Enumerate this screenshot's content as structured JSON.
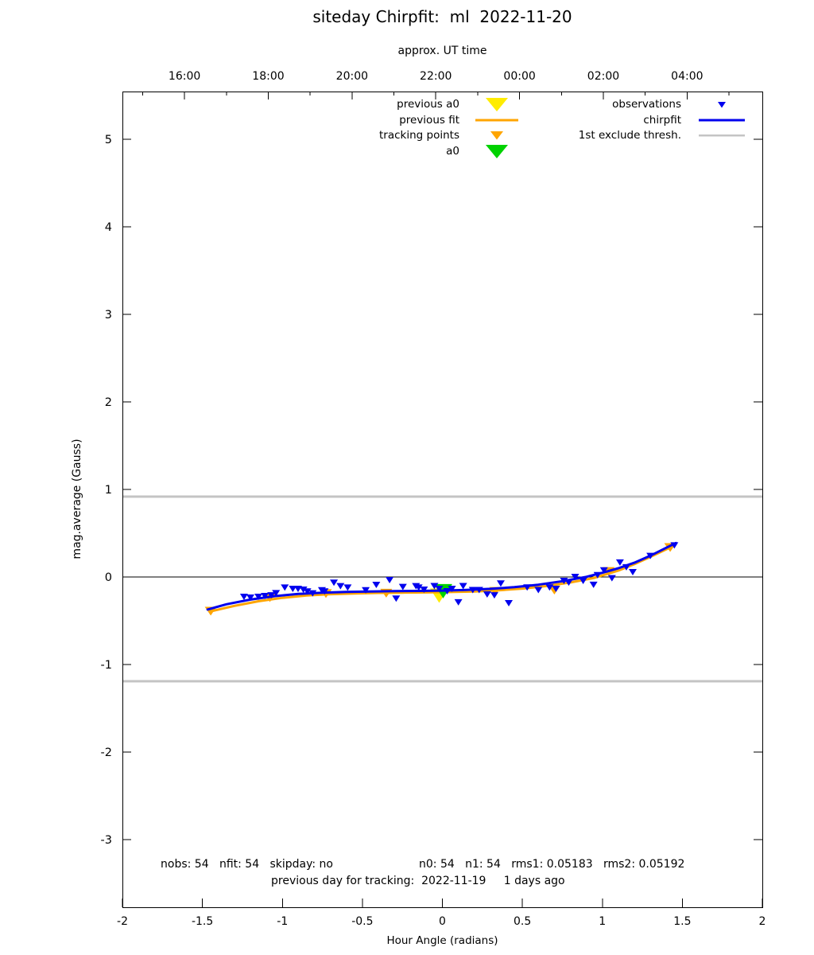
{
  "title": "siteday Chirpfit:  ml  2022-11-20",
  "stats": {
    "line1_left": "nobs: 54   nfit: 54   skipday: no",
    "line1_right": "n0: 54   n1: 54   rms1: 0.05183   rms2: 0.05192",
    "line2": "previous day for tracking:  2022-11-19     1 days ago"
  },
  "chart_data": {
    "type": "scatter",
    "title": "siteday Chirpfit:  ml  2022-11-20",
    "x_axis": {
      "label": "Hour Angle (radians)",
      "range": [
        -2,
        2
      ],
      "ticks": [
        -2,
        -1.5,
        -1,
        -0.5,
        0,
        0.5,
        1,
        1.5,
        2
      ],
      "tick_labels": [
        "-2",
        "-1.5",
        "-1",
        "-0.5",
        "0",
        "0.5",
        "1",
        "1.5",
        "2"
      ]
    },
    "y_axis": {
      "label": "mag.average (Gauss)",
      "range": [
        -3.7727,
        5.5455
      ],
      "ticks": [
        -3,
        -2,
        -1,
        0,
        1,
        2,
        3,
        4,
        5
      ],
      "tick_labels": [
        "-3",
        "-2",
        "-1",
        "0",
        "1",
        "2",
        "3",
        "4",
        "5"
      ]
    },
    "x2_axis": {
      "label": "approx. UT time",
      "major_ticks": [
        {
          "label": "16:00",
          "x": -1.6119
        },
        {
          "label": "18:00",
          "x": -1.0883
        },
        {
          "label": "20:00",
          "x": -0.5647
        },
        {
          "label": "22:00",
          "x": -0.0411
        },
        {
          "label": "00:00",
          "x": 0.4825
        },
        {
          "label": "02:00",
          "x": 1.0061
        },
        {
          "label": "04:00",
          "x": 1.5297
        }
      ],
      "minor_ticks": [
        -1.8737,
        -1.3501,
        -0.8265,
        -0.3029,
        0.2207,
        0.7443,
        1.2679,
        1.7915
      ]
    },
    "zero_line_y": 0,
    "series": {
      "previous_a0": {
        "label": "previous a0",
        "color": "#ffec00",
        "marker": "triangle-down-large",
        "points": [
          [
            -0.02,
            -0.214
          ]
        ]
      },
      "previous_fit": {
        "label": "previous fit",
        "color": "#ffa500",
        "type": "line",
        "points": [
          [
            -1.448,
            -0.393
          ],
          [
            -1.3,
            -0.33
          ],
          [
            -1.15,
            -0.277
          ],
          [
            -1.0,
            -0.238
          ],
          [
            -0.85,
            -0.212
          ],
          [
            -0.7,
            -0.196
          ],
          [
            -0.55,
            -0.188
          ],
          [
            -0.4,
            -0.182
          ],
          [
            -0.25,
            -0.179
          ],
          [
            -0.1,
            -0.176
          ],
          [
            0.05,
            -0.172
          ],
          [
            0.2,
            -0.165
          ],
          [
            0.35,
            -0.152
          ],
          [
            0.5,
            -0.133
          ],
          [
            0.65,
            -0.104
          ],
          [
            0.8,
            -0.063
          ],
          [
            0.95,
            -0.01
          ],
          [
            1.1,
            0.073
          ],
          [
            1.2,
            0.146
          ],
          [
            1.3,
            0.23
          ],
          [
            1.42,
            0.334
          ]
        ]
      },
      "tracking_points": {
        "label": "tracking points",
        "color": "#ffa500",
        "marker": "triangle-down-medium",
        "points": [
          [
            -1.448,
            -0.391
          ],
          [
            -1.078,
            -0.236
          ],
          [
            -0.728,
            -0.19
          ],
          [
            -0.351,
            -0.185
          ],
          [
            0.33,
            -0.165
          ],
          [
            0.7,
            -0.15
          ],
          [
            1.04,
            0.062
          ],
          [
            1.424,
            0.336
          ]
        ]
      },
      "a0": {
        "label": "a0",
        "color": "#00d200",
        "marker": "triangle-down-large",
        "points": [
          [
            0.005,
            -0.163
          ]
        ]
      },
      "observations": {
        "label": "observations",
        "color": "#0000ee",
        "marker": "triangle-down-small",
        "points": [
          [
            -1.24,
            -0.227
          ],
          [
            -1.2,
            -0.236
          ],
          [
            -1.15,
            -0.227
          ],
          [
            -1.11,
            -0.218
          ],
          [
            -1.07,
            -0.21
          ],
          [
            -1.04,
            -0.185
          ],
          [
            -0.985,
            -0.121
          ],
          [
            -0.935,
            -0.136
          ],
          [
            -0.902,
            -0.136
          ],
          [
            -0.869,
            -0.145
          ],
          [
            -0.844,
            -0.166
          ],
          [
            -0.811,
            -0.188
          ],
          [
            -0.753,
            -0.152
          ],
          [
            -0.736,
            -0.166
          ],
          [
            -0.678,
            -0.066
          ],
          [
            -0.637,
            -0.106
          ],
          [
            -0.592,
            -0.121
          ],
          [
            -0.479,
            -0.152
          ],
          [
            -0.413,
            -0.091
          ],
          [
            -0.33,
            -0.036
          ],
          [
            -0.289,
            -0.248
          ],
          [
            -0.247,
            -0.115
          ],
          [
            -0.165,
            -0.106
          ],
          [
            -0.148,
            -0.121
          ],
          [
            -0.115,
            -0.145
          ],
          [
            -0.05,
            -0.105
          ],
          [
            -0.02,
            -0.136
          ],
          [
            0.03,
            -0.164
          ],
          [
            0.06,
            -0.136
          ],
          [
            0.1,
            -0.29
          ],
          [
            0.13,
            -0.105
          ],
          [
            0.19,
            -0.15
          ],
          [
            0.23,
            -0.15
          ],
          [
            0.28,
            -0.2
          ],
          [
            0.325,
            -0.21
          ],
          [
            0.365,
            -0.075
          ],
          [
            0.415,
            -0.3
          ],
          [
            0.53,
            -0.12
          ],
          [
            0.6,
            -0.15
          ],
          [
            0.67,
            -0.12
          ],
          [
            0.71,
            -0.136
          ],
          [
            0.76,
            -0.045
          ],
          [
            0.79,
            -0.065
          ],
          [
            0.83,
            0.0
          ],
          [
            0.88,
            -0.045
          ],
          [
            0.945,
            -0.09
          ],
          [
            0.97,
            0.02
          ],
          [
            1.01,
            0.075
          ],
          [
            1.06,
            -0.015
          ],
          [
            1.11,
            0.165
          ],
          [
            1.15,
            0.11
          ],
          [
            1.19,
            0.055
          ],
          [
            1.3,
            0.24
          ],
          [
            1.45,
            0.36
          ]
        ]
      },
      "chirpfit": {
        "label": "chirpfit",
        "color": "#0000ee",
        "type": "line",
        "points": [
          [
            -1.468,
            -0.372
          ],
          [
            -1.35,
            -0.312
          ],
          [
            -1.2,
            -0.258
          ],
          [
            -1.05,
            -0.219
          ],
          [
            -0.9,
            -0.194
          ],
          [
            -0.75,
            -0.179
          ],
          [
            -0.6,
            -0.17
          ],
          [
            -0.45,
            -0.165
          ],
          [
            -0.3,
            -0.162
          ],
          [
            -0.15,
            -0.159
          ],
          [
            0.0,
            -0.155
          ],
          [
            0.15,
            -0.147
          ],
          [
            0.3,
            -0.135
          ],
          [
            0.45,
            -0.116
          ],
          [
            0.6,
            -0.088
          ],
          [
            0.75,
            -0.048
          ],
          [
            0.9,
            0.002
          ],
          [
            1.0,
            0.048
          ],
          [
            1.1,
            0.1
          ],
          [
            1.2,
            0.163
          ],
          [
            1.3,
            0.243
          ],
          [
            1.4,
            0.335
          ],
          [
            1.46,
            0.388
          ]
        ]
      },
      "exclude_threshold": {
        "label": "1st exclude thresh.",
        "color": "#c4c4c4",
        "type": "hline",
        "values": [
          0.918,
          -1.191
        ]
      }
    },
    "legend_position": "top-inside",
    "grid": false
  }
}
